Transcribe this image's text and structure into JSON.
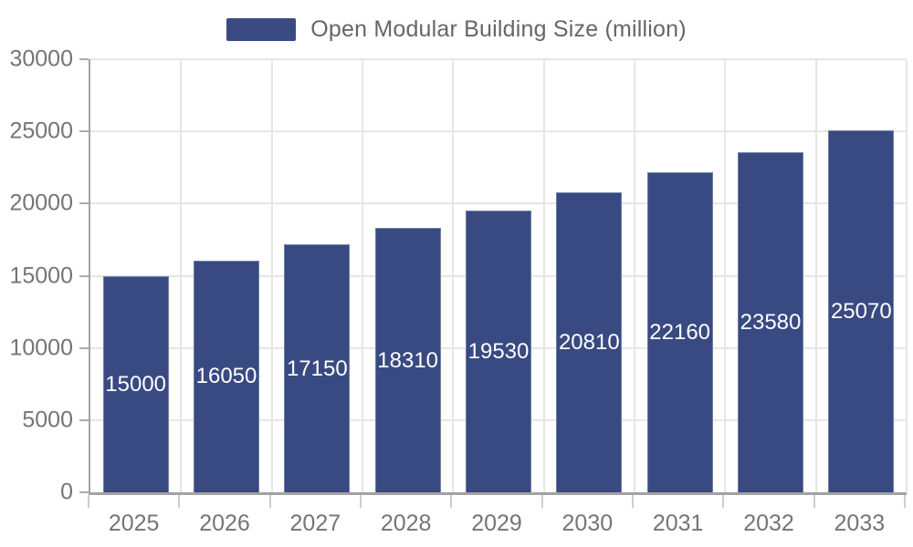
{
  "chart_data": {
    "type": "bar",
    "title": "",
    "legend_label": "Open Modular Building Size (million)",
    "legend_position": "top",
    "categories": [
      "2025",
      "2026",
      "2027",
      "2028",
      "2029",
      "2030",
      "2031",
      "2032",
      "2033"
    ],
    "series": [
      {
        "name": "Open Modular Building Size (million)",
        "values": [
          15000,
          16050,
          17150,
          18310,
          19530,
          20810,
          22160,
          23580,
          25070
        ]
      }
    ],
    "value_labels": [
      "15000",
      "16050",
      "17150",
      "18310",
      "19530",
      "20810",
      "22160",
      "23580",
      "25070"
    ],
    "xlabel": "",
    "ylabel": "",
    "ylim": [
      0,
      30000
    ],
    "yticks": [
      0,
      5000,
      10000,
      15000,
      20000,
      25000,
      30000
    ],
    "ytick_labels": [
      "0",
      "5000",
      "10000",
      "15000",
      "20000",
      "25000",
      "30000"
    ],
    "grid": true,
    "colors": {
      "bar": "#394a82",
      "value_label": "#ffffff",
      "axis_text": "#757575",
      "legend_text": "#666666",
      "gridline": "#e6e6e9",
      "axis_line": "#a2a2a2",
      "background": "#ffffff"
    }
  }
}
